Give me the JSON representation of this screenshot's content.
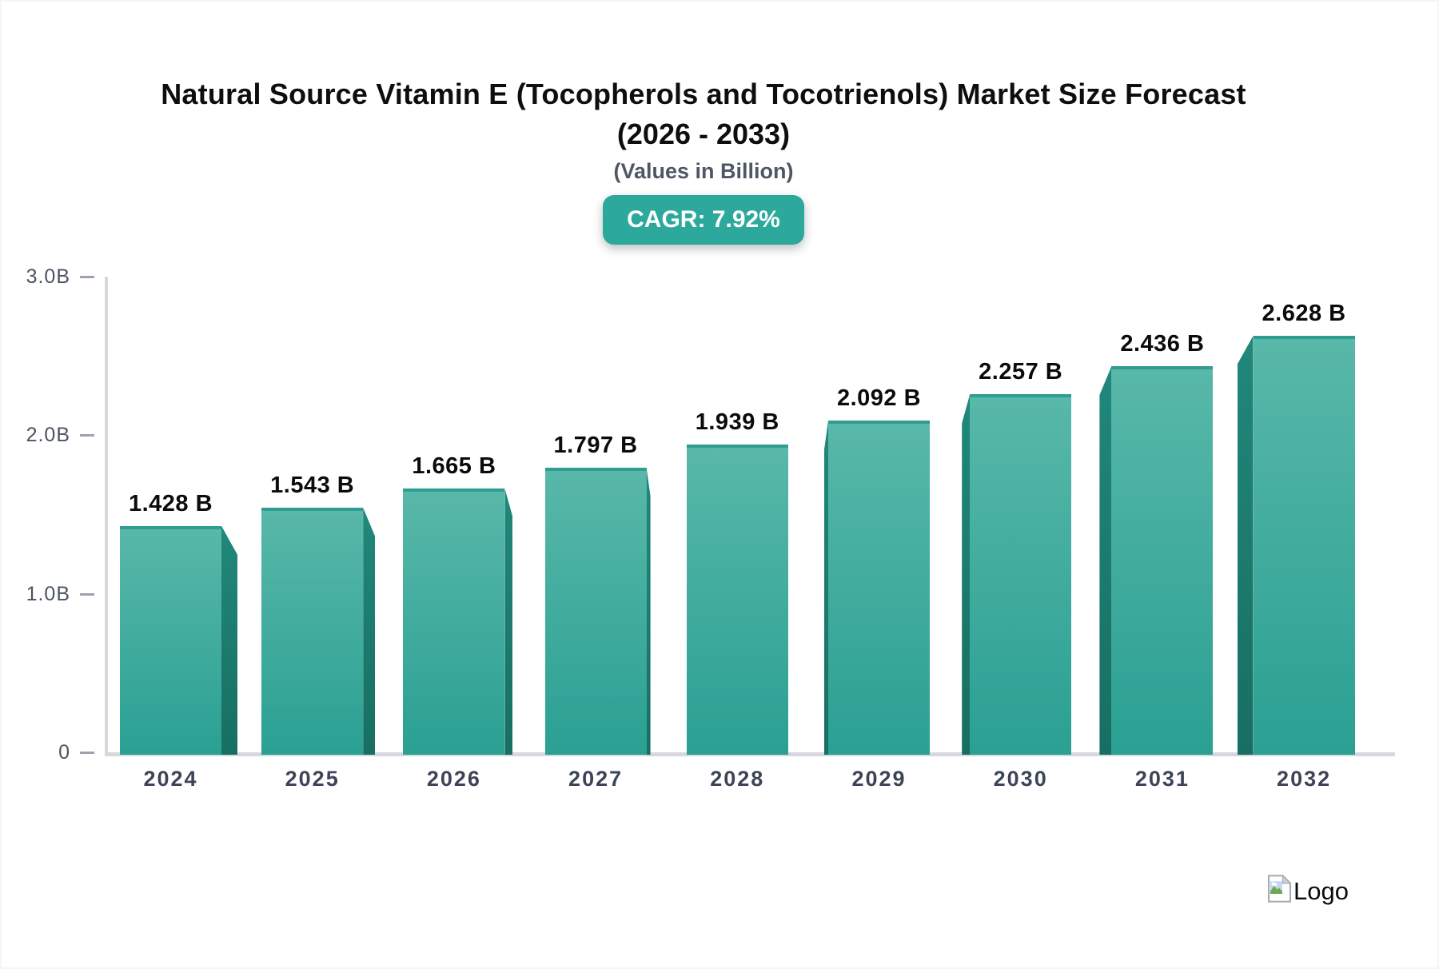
{
  "header": {
    "title_line1": "Natural Source Vitamin E (Tocopherols and Tocotrienols) Market Size Forecast",
    "title_line2": "(2026 - 2033)",
    "subtitle": "(Values in Billion)",
    "cagr_badge": "CAGR: 7.92%"
  },
  "chart_data": {
    "type": "bar",
    "title": "Natural Source Vitamin E (Tocopherols and Tocotrienols) Market Size Forecast (2026 - 2033)",
    "subtitle": "(Values in Billion)",
    "annotation": "CAGR: 7.92%",
    "categories": [
      "2024",
      "2025",
      "2026",
      "2027",
      "2028",
      "2029",
      "2030",
      "2031",
      "2032"
    ],
    "values": [
      1.428,
      1.543,
      1.665,
      1.797,
      1.939,
      2.092,
      2.257,
      2.436,
      2.628
    ],
    "value_labels": [
      "1.428 B",
      "1.543 B",
      "1.665 B",
      "1.797 B",
      "1.939 B",
      "2.092 B",
      "2.257 B",
      "2.436 B",
      "2.628 B"
    ],
    "xlabel": "",
    "ylabel": "",
    "ylim": [
      0,
      3.0
    ],
    "y_ticks": [
      {
        "label": "3.0B",
        "value": 3.0
      },
      {
        "label": "2.0B",
        "value": 2.0
      },
      {
        "label": "1.0B",
        "value": 1.0
      },
      {
        "label": "0",
        "value": 0.0
      }
    ],
    "grid": false,
    "legend": false,
    "bar_style": "3d-teal"
  },
  "footer": {
    "logo_text": "Logo",
    "logo_icon": "broken-image-icon"
  },
  "colors": {
    "badge_bg": "#2ca99c",
    "bar_face_top": "#58b8a9",
    "bar_face_bottom": "#2aa093",
    "bar_top_edge": "#2f9d91",
    "bar_side_top": "#20887b",
    "bar_side_bottom": "#186e62",
    "axis": "#d6d8dd",
    "tick_mark": "#9da3ad",
    "tick_text": "#4a5464",
    "x_label_text": "#3c4558",
    "value_text": "#0b0b0b"
  }
}
